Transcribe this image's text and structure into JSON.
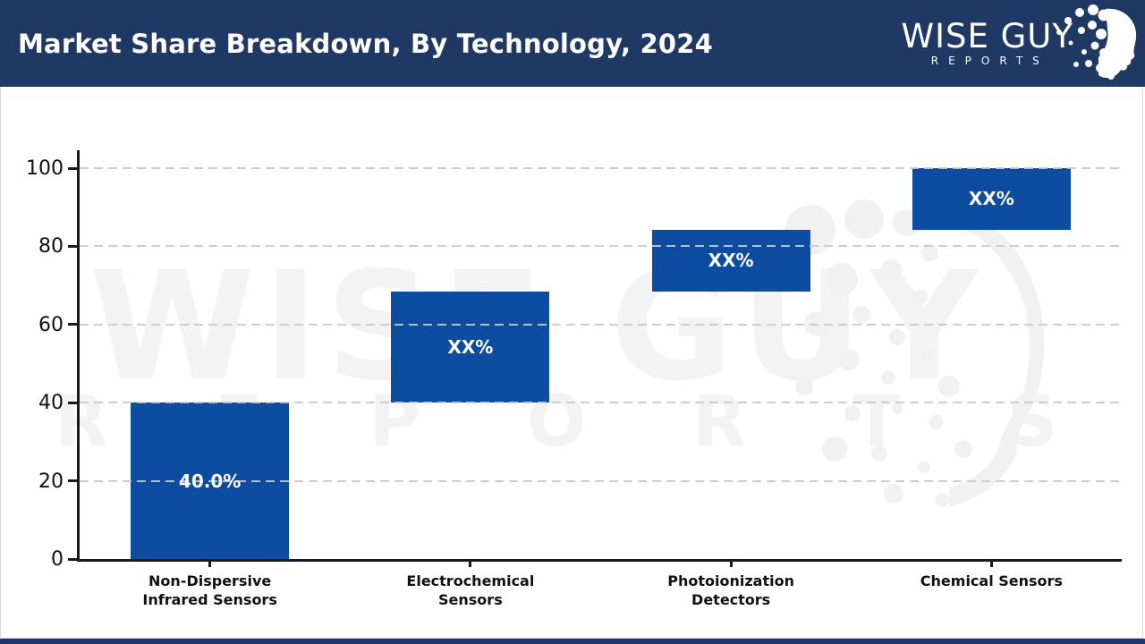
{
  "header": {
    "title": "Market Share Breakdown, By Technology, 2024",
    "logo": {
      "name": "WISE GUY",
      "sub": "REPORTS"
    }
  },
  "watermark": {
    "line1": "WISE GUY",
    "line2": "R E P O R T S"
  },
  "chart_data": {
    "type": "bar",
    "subtype": "floating-waterfall",
    "title": "Market Share Breakdown, By Technology, 2024",
    "categories": [
      "Non-Dispersive Infrared Sensors",
      "Electrochemical Sensors",
      "Photoionization Detectors",
      "Chemical Sensors"
    ],
    "categories_wrapped": [
      [
        "Non-Dispersive",
        "Infrared Sensors"
      ],
      [
        "Electrochemical",
        "Sensors"
      ],
      [
        "Photoionization",
        "Detectors"
      ],
      [
        "Chemical Sensors"
      ]
    ],
    "segments": [
      {
        "category": "Non-Dispersive Infrared Sensors",
        "start": 0,
        "end": 40,
        "label": "40.0%"
      },
      {
        "category": "Electrochemical Sensors",
        "start": 40,
        "end": 68.5,
        "label": "XX%"
      },
      {
        "category": "Photoionization Detectors",
        "start": 68.5,
        "end": 84.3,
        "label": "XX%"
      },
      {
        "category": "Chemical Sensors",
        "start": 84.3,
        "end": 100,
        "label": "XX%"
      }
    ],
    "xlabel": "",
    "ylabel": "",
    "ylim": [
      0,
      105
    ],
    "yticks": [
      0,
      20,
      40,
      60,
      80,
      100
    ],
    "grid": "horizontal-dashed",
    "legend": "none",
    "colors": {
      "bar": "#0C4DA2",
      "bar_label": "#FFFFFF",
      "axis": "#1A1A1A",
      "grid": "#CCCCCC",
      "header_bg": "#1F3864",
      "watermark": "#F3F3F3"
    }
  }
}
